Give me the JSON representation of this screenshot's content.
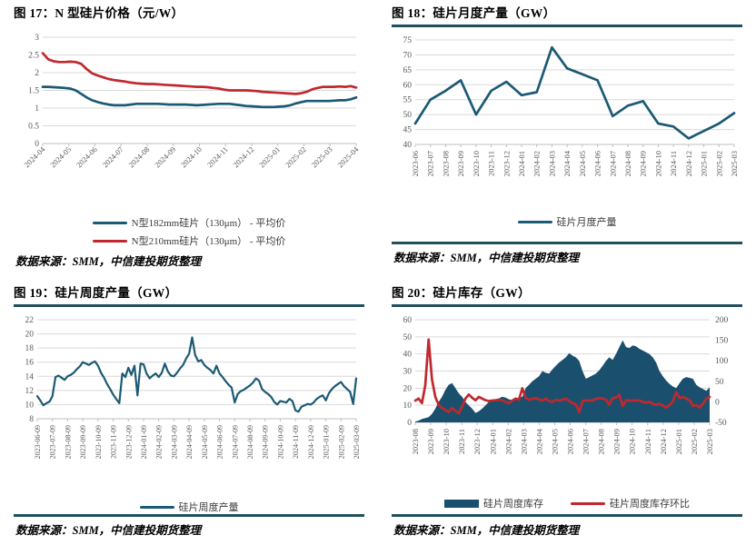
{
  "colors": {
    "accent_rule": "#204F5E",
    "line_blue": "#1B5A74",
    "area_blue": "#1A506E",
    "line_red": "#C0282F",
    "grid": "#D9D9D9",
    "axis": "#BFBFBF",
    "tick_text": "#595959"
  },
  "panels": [
    {
      "title": "图 17：N 型硅片价格（元/W）",
      "source": "数据来源：SMM，中信建投期货整理",
      "legend": [
        {
          "label": "N型182mm硅片（130μm） - 平均价",
          "color": "#1B5A74",
          "type": "line"
        },
        {
          "label": "N型210mm硅片（130μm） - 平均价",
          "color": "#C0282F",
          "type": "line"
        }
      ]
    },
    {
      "title": "图 18：硅片月度产量（GW）",
      "source": "数据来源：SMM，中信建投期货整理",
      "legend": [
        {
          "label": "硅片月度产量",
          "color": "#1B5A74",
          "type": "line"
        }
      ]
    },
    {
      "title": "图 19：硅片周度产量（GW）",
      "source": "数据来源：SMM，中信建投期货整理",
      "legend": [
        {
          "label": "硅片周度产量",
          "color": "#1B5A74",
          "type": "line"
        }
      ]
    },
    {
      "title": "图 20：硅片库存（GW）",
      "source": "数据来源：SMM，中信建投期货整理",
      "legend": [
        {
          "label": "硅片周度库存",
          "color": "#1A506E",
          "type": "area"
        },
        {
          "label": "硅片周度库存环比",
          "color": "#C0282F",
          "type": "line"
        }
      ]
    }
  ],
  "chart_data": [
    {
      "id": "fig17",
      "type": "line",
      "title": "N 型硅片价格（元/W）",
      "ylim": [
        0,
        3
      ],
      "yticks": [
        0,
        0.5,
        1,
        1.5,
        2,
        2.5,
        3
      ],
      "x_rotation": 45,
      "x_tick_labels": [
        "2024-04",
        "2024-05",
        "2024-06",
        "2024-07",
        "2024-08",
        "2024-09",
        "2024-10",
        "2024-11",
        "2024-12",
        "2025-01",
        "2025-02",
        "2025-03",
        "2025-04"
      ],
      "series": [
        {
          "name": "N型182mm硅片（130μm） - 平均价",
          "type": "line",
          "axis": "left",
          "color": "#1B5A74",
          "values": [
            1.6,
            1.6,
            1.59,
            1.58,
            1.57,
            1.55,
            1.5,
            1.4,
            1.3,
            1.22,
            1.17,
            1.13,
            1.1,
            1.08,
            1.08,
            1.08,
            1.1,
            1.12,
            1.12,
            1.12,
            1.12,
            1.12,
            1.11,
            1.1,
            1.1,
            1.1,
            1.1,
            1.09,
            1.08,
            1.09,
            1.1,
            1.11,
            1.12,
            1.12,
            1.12,
            1.1,
            1.08,
            1.06,
            1.05,
            1.04,
            1.03,
            1.03,
            1.03,
            1.04,
            1.05,
            1.08,
            1.13,
            1.17,
            1.2,
            1.2,
            1.2,
            1.2,
            1.2,
            1.21,
            1.22,
            1.22,
            1.25,
            1.3
          ]
        },
        {
          "name": "N型210mm硅片（130μm） - 平均价",
          "type": "line",
          "axis": "left",
          "color": "#C0282F",
          "values": [
            2.55,
            2.38,
            2.32,
            2.3,
            2.3,
            2.31,
            2.3,
            2.25,
            2.1,
            1.98,
            1.92,
            1.87,
            1.82,
            1.79,
            1.77,
            1.75,
            1.72,
            1.7,
            1.69,
            1.68,
            1.68,
            1.67,
            1.66,
            1.65,
            1.64,
            1.63,
            1.62,
            1.61,
            1.6,
            1.6,
            1.59,
            1.57,
            1.55,
            1.52,
            1.5,
            1.5,
            1.5,
            1.5,
            1.49,
            1.48,
            1.46,
            1.45,
            1.44,
            1.43,
            1.42,
            1.41,
            1.4,
            1.42,
            1.46,
            1.53,
            1.57,
            1.6,
            1.6,
            1.6,
            1.61,
            1.6,
            1.62,
            1.58
          ]
        }
      ]
    },
    {
      "id": "fig18",
      "type": "line",
      "title": "硅片月度产量（GW）",
      "ylim": [
        40,
        75
      ],
      "yticks": [
        40,
        45,
        50,
        55,
        60,
        65,
        70,
        75
      ],
      "x_rotation": 90,
      "x_tick_labels": [
        "2023-06",
        "2023-07",
        "2023-08",
        "2023-09",
        "2023-10",
        "2023-11",
        "2023-12",
        "2024-01",
        "2024-02",
        "2024-03",
        "2024-04",
        "2024-05",
        "2024-06",
        "2024-07",
        "2024-08",
        "2024-09",
        "2024-10",
        "2024-11",
        "2024-12",
        "2025-01",
        "2025-02",
        "2025-03"
      ],
      "series": [
        {
          "name": "硅片月度产量",
          "type": "line",
          "axis": "left",
          "color": "#1B5A74",
          "values": [
            47,
            55,
            58,
            61.5,
            50,
            58,
            61,
            56.5,
            57.5,
            72.5,
            65.5,
            63.5,
            61.5,
            49.5,
            53,
            54.5,
            47,
            46,
            42,
            44.5,
            47,
            50.5
          ]
        }
      ]
    },
    {
      "id": "fig19",
      "type": "line",
      "title": "硅片周度产量（GW）",
      "ylim": [
        8,
        22
      ],
      "yticks": [
        8,
        10,
        12,
        14,
        16,
        18,
        20,
        22
      ],
      "x_rotation": 90,
      "x_tick_labels": [
        "2023-06-09",
        "2023-07-09",
        "2023-08-09",
        "2023-09-09",
        "2023-10-09",
        "2023-11-09",
        "2023-12-09",
        "2024-01-09",
        "2024-02-09",
        "2024-03-09",
        "2024-04-09",
        "2024-05-09",
        "2024-06-09",
        "2024-07-09",
        "2024-08-09",
        "2024-09-09",
        "2024-10-09",
        "2024-11-09",
        "2024-12-09",
        "2025-01-09",
        "2025-02-09",
        "2025-03-09"
      ],
      "series": [
        {
          "name": "硅片周度产量",
          "type": "line",
          "axis": "left",
          "color": "#1B5A74",
          "values": [
            11.2,
            10.6,
            9.9,
            10.2,
            10.4,
            11.2,
            13.9,
            14.1,
            13.8,
            13.5,
            14.0,
            14.2,
            14.5,
            15.0,
            15.4,
            16.0,
            15.8,
            15.6,
            15.9,
            16.1,
            15.5,
            14.5,
            13.8,
            12.9,
            12.2,
            11.4,
            10.8,
            10.2,
            14.4,
            13.9,
            15.2,
            14.2,
            15.5,
            11.3,
            15.8,
            15.7,
            14.4,
            13.7,
            14.1,
            14.4,
            13.9,
            14.5,
            15.8,
            14.7,
            14.1,
            14.0,
            14.5,
            15.1,
            15.6,
            16.5,
            17.2,
            19.5,
            17.0,
            16.1,
            16.3,
            15.6,
            15.2,
            14.9,
            14.4,
            15.5,
            14.4,
            13.9,
            13.3,
            12.8,
            12.4,
            10.3,
            11.5,
            11.9,
            12.1,
            12.4,
            12.7,
            13.1,
            13.7,
            13.4,
            12.2,
            11.8,
            11.5,
            11.1,
            10.4,
            10.0,
            10.5,
            10.4,
            10.3,
            10.8,
            10.5,
            9.2,
            9.0,
            9.7,
            9.9,
            10.1,
            10.0,
            10.3,
            10.8,
            11.1,
            11.3,
            10.6,
            11.6,
            12.2,
            12.6,
            12.9,
            13.2,
            12.6,
            12.2,
            11.8,
            10.1,
            13.7
          ]
        }
      ]
    },
    {
      "id": "fig20",
      "type": "area+line",
      "title": "硅片库存（GW）",
      "ylim": [
        0,
        60
      ],
      "yticks": [
        0,
        10,
        20,
        30,
        40,
        50,
        60
      ],
      "y2lim": [
        -50,
        200
      ],
      "y2ticks": [
        -50,
        0,
        50,
        100,
        150,
        200
      ],
      "x_rotation": 90,
      "x_tick_labels": [
        "2023-08",
        "2023-09",
        "2023-10",
        "2023-11",
        "2023-12",
        "2024-01",
        "2024-02",
        "2024-03",
        "2024-04",
        "2024-05",
        "2024-06",
        "2024-07",
        "2024-08",
        "2024-09",
        "2024-10",
        "2024-11",
        "2024-12",
        "2025-01",
        "2025-02",
        "2025-03"
      ],
      "series": [
        {
          "name": "硅片周度库存",
          "type": "area",
          "axis": "left",
          "color": "#1A506E",
          "values": [
            0.5,
            1,
            2,
            2.5,
            3,
            5,
            8,
            12,
            15,
            19,
            22,
            23,
            20,
            17,
            15,
            12,
            10,
            8,
            5.5,
            6.5,
            8,
            10,
            12,
            13,
            13.5,
            14,
            15,
            14.5,
            13.5,
            13,
            13.5,
            14.5,
            15,
            20,
            22,
            24,
            25.5,
            27,
            30,
            29,
            28.5,
            31,
            33,
            35,
            36.5,
            38,
            40.5,
            39,
            38,
            36,
            30,
            25.5,
            26.5,
            27.5,
            28.5,
            30.5,
            33,
            36,
            38,
            36.5,
            40,
            44,
            48,
            44,
            43.5,
            45,
            44.5,
            43,
            42,
            41,
            40,
            38,
            35,
            30,
            27,
            24.5,
            22.5,
            21,
            20,
            23,
            25.5,
            26.5,
            26,
            25.5,
            22,
            20.5,
            19.5,
            18.5,
            20.5
          ]
        },
        {
          "name": "硅片周度库存环比",
          "type": "line",
          "axis": "right",
          "color": "#C0282F",
          "values": [
            3,
            8,
            -3,
            40,
            152,
            55,
            12,
            -8,
            -15,
            -20,
            -25,
            -15,
            -22,
            -28,
            -12,
            8,
            18,
            10,
            4,
            12,
            8,
            4,
            2,
            3,
            4,
            5,
            3,
            0,
            -3,
            3,
            8,
            5,
            33,
            10,
            5,
            7,
            9,
            6,
            3,
            8,
            2,
            0,
            5,
            3,
            5,
            8,
            2,
            -3,
            -6,
            -25,
            2,
            4,
            3,
            4,
            7,
            9,
            8,
            5,
            -7,
            9,
            10,
            17,
            -10,
            4,
            3,
            3,
            4,
            3,
            0,
            -2,
            0,
            -5,
            -7,
            -5,
            -9,
            -14,
            -8,
            0,
            24,
            9,
            12,
            8,
            4,
            -10,
            -8,
            -14,
            -5,
            8,
            12
          ]
        }
      ]
    }
  ]
}
